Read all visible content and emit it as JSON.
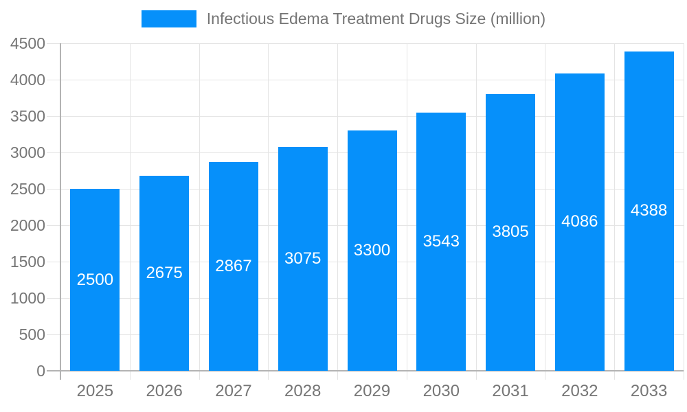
{
  "chart_data": {
    "type": "bar",
    "title": "Infectious Edema Treatment Drugs Size (million)",
    "categories": [
      "2025",
      "2026",
      "2027",
      "2028",
      "2029",
      "2030",
      "2031",
      "2032",
      "2033"
    ],
    "values": [
      2500,
      2675,
      2867,
      3075,
      3300,
      3543,
      3805,
      4086,
      4388
    ],
    "xlabel": "",
    "ylabel": "",
    "ylim": [
      0,
      4500
    ],
    "ytick_step": 500,
    "ytick_labels": [
      "0",
      "500",
      "1000",
      "1500",
      "2000",
      "2500",
      "3000",
      "3500",
      "4000",
      "4500"
    ],
    "grid": true,
    "legend_position": "top-center",
    "colors": {
      "bar": "#0690fa",
      "value_label": "#ffffff",
      "axis_text": "#757575",
      "title_text": "#757575",
      "gridline": "#e4e4e4",
      "axis_line": "#b3b3b3"
    }
  }
}
